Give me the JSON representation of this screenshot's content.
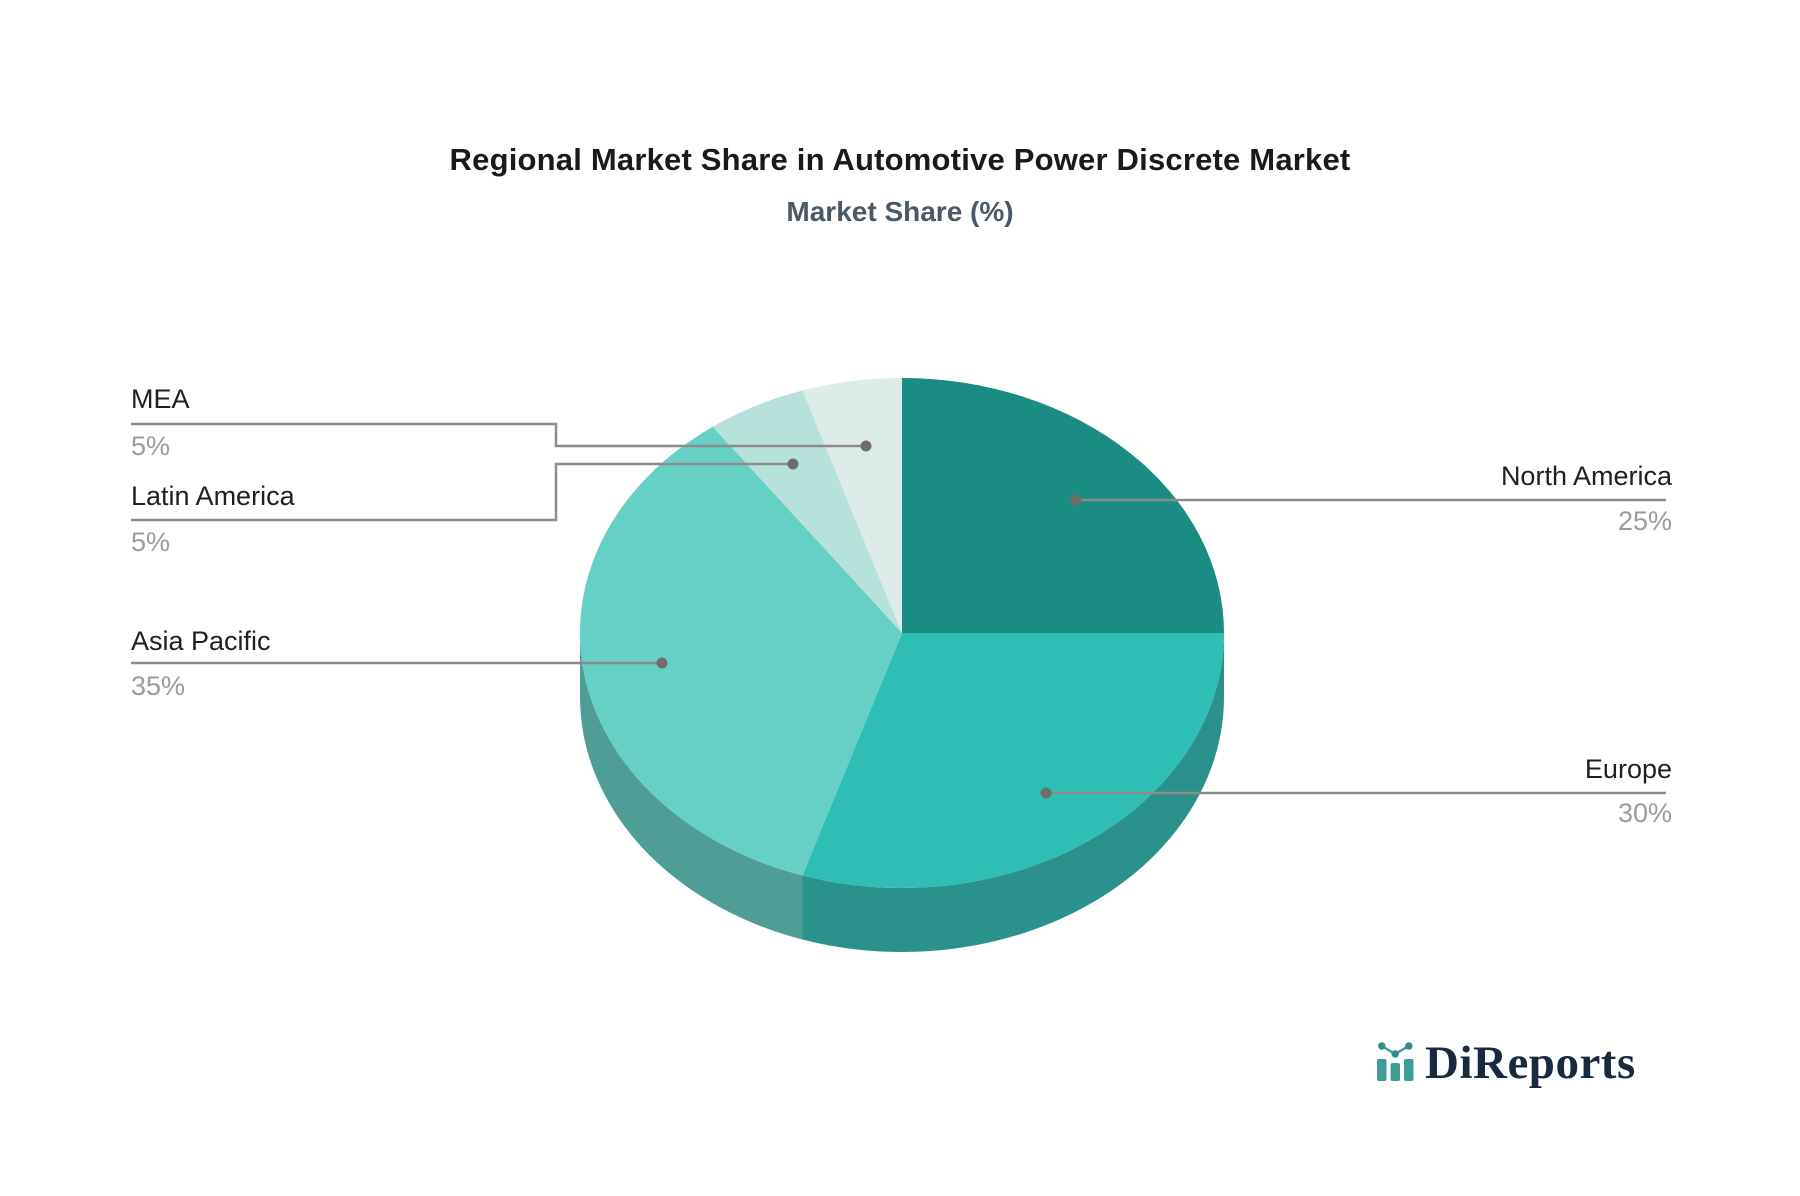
{
  "title": "Regional Market Share in Automotive Power Discrete Market",
  "subtitle": "Market Share (%)",
  "chart_data": {
    "type": "pie",
    "style": "3d-pie",
    "title": "Regional Market Share in Automotive Power Discrete Market",
    "subtitle": "Market Share (%)",
    "unit": "%",
    "start_angle_deg": -90,
    "direction": "clockwise",
    "legend": "none",
    "labels_shown": true,
    "categories": [
      "North America",
      "Europe",
      "Asia Pacific",
      "Latin America",
      "MEA"
    ],
    "values": [
      25,
      30,
      35,
      5,
      5
    ],
    "slices": [
      {
        "name": "North America",
        "value": 25,
        "pct_label": "25%",
        "color": "#1b8c82",
        "depth_color": "#15706a"
      },
      {
        "name": "Europe",
        "value": 30,
        "pct_label": "30%",
        "color": "#2fbeb3",
        "depth_color": "#2a928a"
      },
      {
        "name": "Asia Pacific",
        "value": 35,
        "pct_label": "35%",
        "color": "#66d0c5",
        "depth_color": "#4f9e96"
      },
      {
        "name": "Latin America",
        "value": 5,
        "pct_label": "5%",
        "color": "#b7e1db",
        "depth_color": "#90b7b1"
      },
      {
        "name": "MEA",
        "value": 5,
        "pct_label": "5%",
        "color": "#deece9",
        "depth_color": "#b2c0bd"
      }
    ]
  },
  "label_colors": {
    "name_text": "#1f1f1f",
    "pct_text": "#9b9b9b",
    "leader_line": "#8c8c8c",
    "leader_dot": "#6e6e6e"
  },
  "watermark": {
    "brand": "DiReports",
    "icon": "bar-line-chart-icon",
    "icon_color": "#3f9d98",
    "text_color": "#1b2940"
  }
}
